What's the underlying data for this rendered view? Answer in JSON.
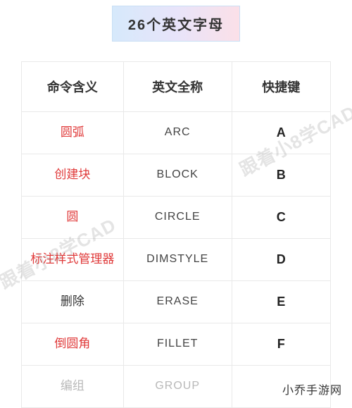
{
  "title": "26个英文字母",
  "columns": {
    "cmd": "命令含义",
    "en": "英文全称",
    "key": "快捷键"
  },
  "col_widths": {
    "cmd": "33%",
    "en": "35%",
    "key": "32%"
  },
  "rows": [
    {
      "cmd": "圆弧",
      "en": "ARC",
      "key": "A",
      "cmd_color": "red",
      "faded": false
    },
    {
      "cmd": "创建块",
      "en": "BLOCK",
      "key": "B",
      "cmd_color": "red",
      "faded": false
    },
    {
      "cmd": "圆",
      "en": "CIRCLE",
      "key": "C",
      "cmd_color": "red",
      "faded": false
    },
    {
      "cmd": "标注样式管理器",
      "en": "DIMSTYLE",
      "key": "D",
      "cmd_color": "red",
      "faded": false
    },
    {
      "cmd": "删除",
      "en": "ERASE",
      "key": "E",
      "cmd_color": "black",
      "faded": false
    },
    {
      "cmd": "倒圆角",
      "en": "FILLET",
      "key": "F",
      "cmd_color": "red",
      "faded": false
    },
    {
      "cmd": "编组",
      "en": "GROUP",
      "key": "",
      "cmd_color": "black",
      "faded": true
    }
  ],
  "watermark": "跟着小8学CAD",
  "footer": "小乔手游网",
  "colors": {
    "border": "#e9e9e9",
    "red": "#e03a3a",
    "text": "#333333",
    "faded": "#b8b8b8",
    "watermark": "#888888",
    "title_bg_left": "#d6e9fb",
    "title_bg_mid": "#e8e4fa",
    "title_bg_right": "#fbe0e8",
    "background": "#ffffff"
  },
  "fonts": {
    "title_size": 20,
    "header_size": 18,
    "cell_cmd_size": 17,
    "cell_en_size": 16,
    "cell_key_size": 18,
    "watermark_size": 26,
    "footer_size": 16
  },
  "watermark_rotation_deg": -28
}
